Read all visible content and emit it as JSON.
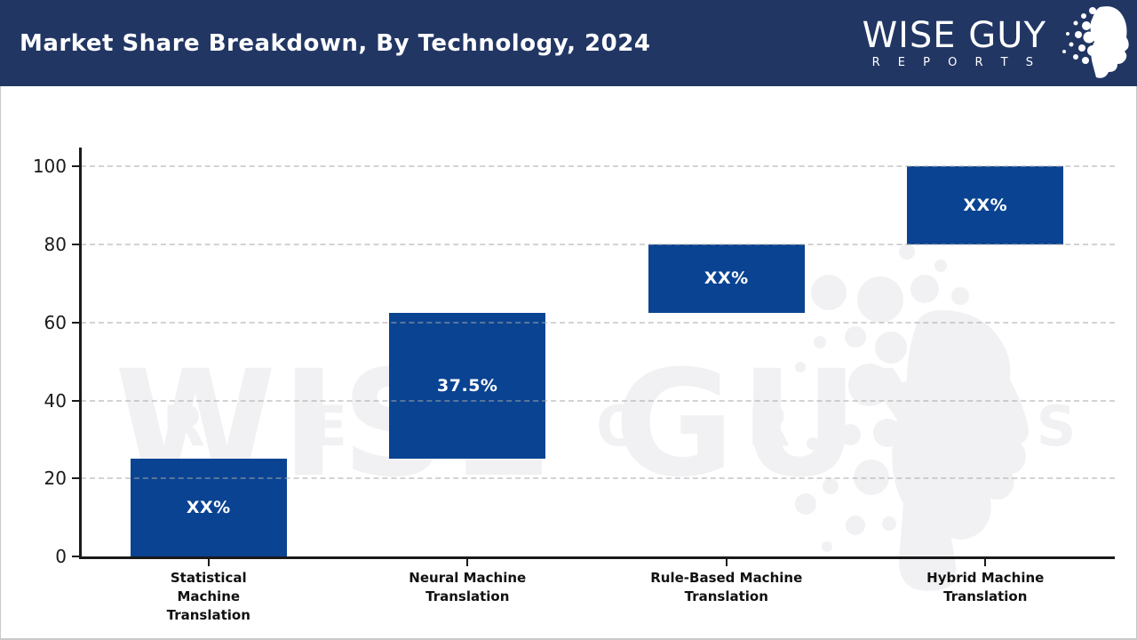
{
  "header": {
    "title": "Market Share Breakdown, By Technology, 2024",
    "logo": {
      "line1": "WISE GUY",
      "line2": "R E P O R T S"
    }
  },
  "watermark": {
    "line1": "WISE GUY",
    "line2": "R E P O R T S"
  },
  "chart_data": {
    "type": "bar",
    "subtype": "waterfall",
    "title": "Market Share Breakdown, By Technology, 2024",
    "categories": [
      {
        "label": "Statistical Machine Translation",
        "lines": [
          "Statistical",
          "Machine",
          "Translation"
        ]
      },
      {
        "label": "Neural Machine Translation",
        "lines": [
          "Neural Machine",
          "Translation"
        ]
      },
      {
        "label": "Rule-Based Machine Translation",
        "lines": [
          "Rule-Based Machine",
          "Translation"
        ]
      },
      {
        "label": "Hybrid Machine Translation",
        "lines": [
          "Hybrid Machine",
          "Translation"
        ]
      }
    ],
    "bars": [
      {
        "category": "Statistical Machine Translation",
        "start": 0,
        "end": 25,
        "label": "XX%"
      },
      {
        "category": "Neural Machine Translation",
        "start": 25,
        "end": 62.5,
        "label": "37.5%"
      },
      {
        "category": "Rule-Based Machine Translation",
        "start": 62.5,
        "end": 80,
        "label": "XX%"
      },
      {
        "category": "Hybrid Machine Translation",
        "start": 80,
        "end": 100,
        "label": "XX%"
      }
    ],
    "yticks": [
      0,
      20,
      40,
      60,
      80,
      100
    ],
    "ylim": [
      0,
      105
    ],
    "xlabel": "",
    "ylabel": "",
    "grid": "horizontal-dashed",
    "legend": "none",
    "colors": {
      "header_bg": "#213663",
      "bar": "#0a4392",
      "grid": "#d8d8d8",
      "axis": "#1a1a1a",
      "bar_value_text": "#ffffff",
      "watermark": "#f1f1f3"
    }
  }
}
